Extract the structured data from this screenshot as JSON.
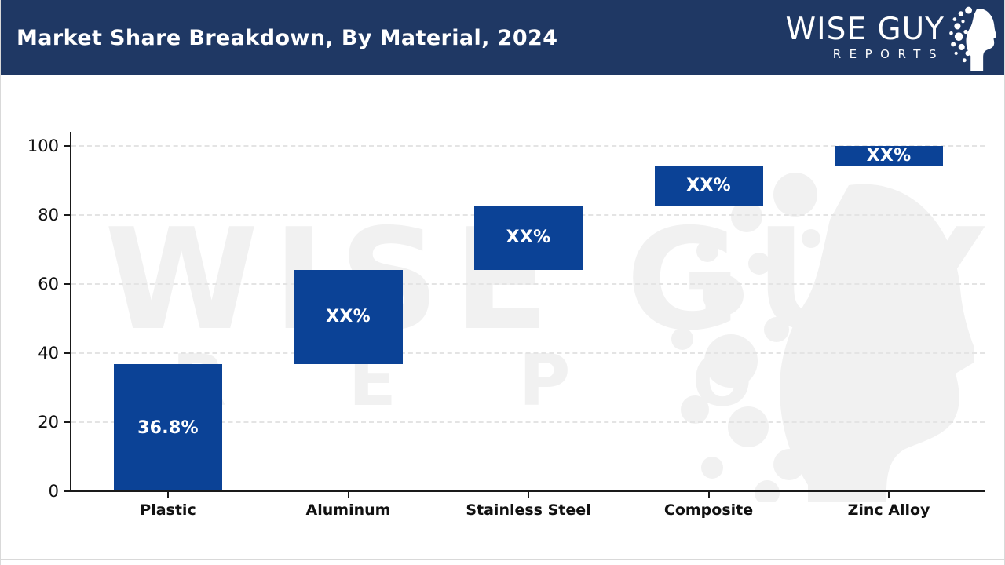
{
  "header": {
    "title": "Market Share Breakdown, By Material, 2024",
    "bg_color": "#1F3864",
    "logo": {
      "line1": "WISE GUY",
      "line2": "REPORTS"
    }
  },
  "watermark": {
    "line1": "WISE GUY",
    "line2": "REPORTS"
  },
  "chart_data": {
    "type": "bar",
    "subtype": "waterfall",
    "title": "Market Share Breakdown, By Material, 2024",
    "categories": [
      "Plastic",
      "Aluminum",
      "Stainless Steel",
      "Composite",
      "Zinc Alloy"
    ],
    "segments": [
      {
        "category": "Plastic",
        "start": 0,
        "end": 36.8,
        "label": "36.8%"
      },
      {
        "category": "Aluminum",
        "start": 36.8,
        "end": 64.2,
        "label": "XX%"
      },
      {
        "category": "Stainless Steel",
        "start": 64.2,
        "end": 82.8,
        "label": "XX%"
      },
      {
        "category": "Composite",
        "start": 82.8,
        "end": 94.3,
        "label": "XX%"
      },
      {
        "category": "Zinc Alloy",
        "start": 94.3,
        "end": 100,
        "label": "XX%"
      }
    ],
    "bar_color": "#0B4296",
    "xlabel": "",
    "ylabel": "",
    "ylim": [
      0,
      100
    ],
    "yticks": [
      0,
      20,
      40,
      60,
      80,
      100
    ],
    "grid": "horizontal-dashed",
    "legend": "none"
  }
}
